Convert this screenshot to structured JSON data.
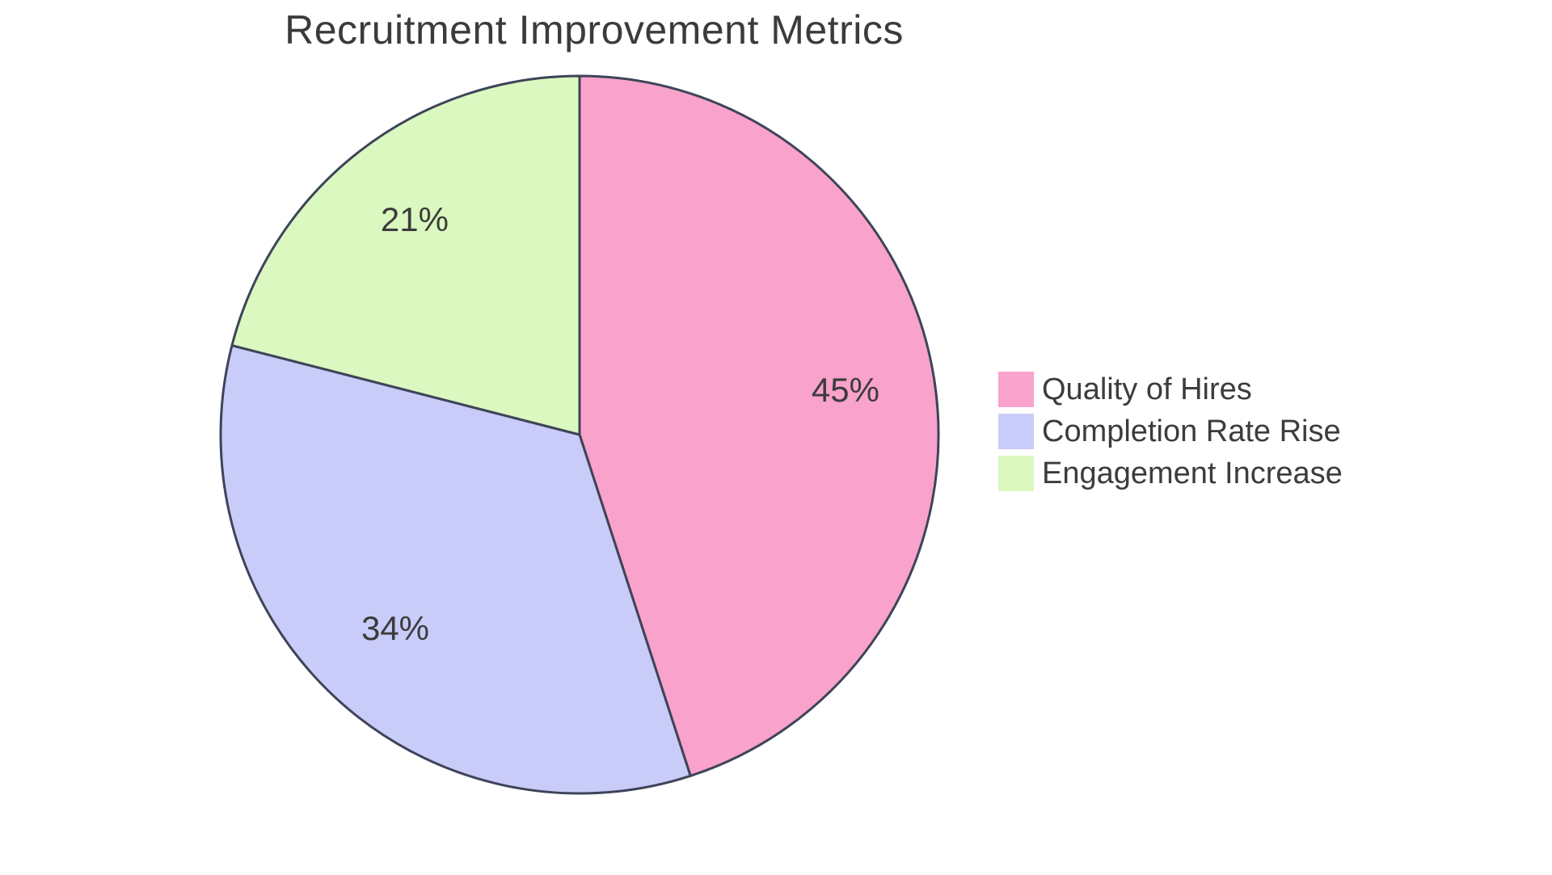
{
  "chart_data": {
    "type": "pie",
    "title": "Recruitment Improvement Metrics",
    "labels": [
      "Quality of Hires",
      "Completion Rate Rise",
      "Engagement Increase"
    ],
    "values": [
      45,
      34,
      21
    ],
    "percent_labels": [
      "45%",
      "34%",
      "21%"
    ],
    "colors": [
      "#F9A2CB",
      "#C9CCF8",
      "#DAF8BF"
    ],
    "stroke_color": "#3E4459",
    "label_text_color": "#3C3C3C",
    "title_text_color": "#3B3B3B",
    "start_angle_deg": 0,
    "direction": "clockwise",
    "legend_position": "right",
    "background_color": "#FFFFFF"
  }
}
